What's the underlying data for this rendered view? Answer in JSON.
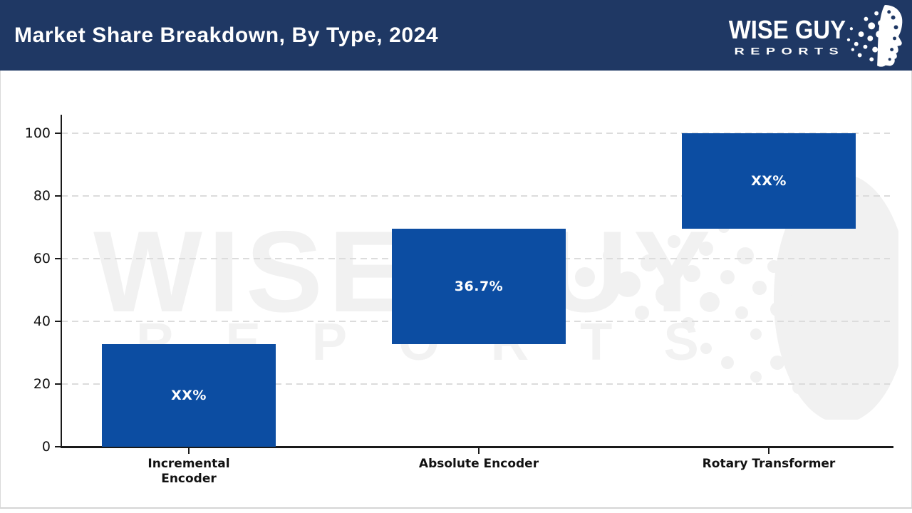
{
  "header": {
    "title": "Market Share Breakdown, By Type, 2024",
    "logo": {
      "brand_line1": "WISE GUY",
      "brand_line2": "REPORTS"
    }
  },
  "watermark": {
    "line1": "WISE GUY",
    "line2": "REPORTS"
  },
  "chart_data": {
    "type": "bar",
    "variant": "floating-waterfall-segments",
    "title": "Market Share Breakdown, By Type, 2024",
    "categories": [
      "Incremental Encoder",
      "Absolute Encoder",
      "Rotary Transformer"
    ],
    "category_label_lines": [
      [
        "Incremental",
        "Encoder"
      ],
      [
        "Absolute Encoder"
      ],
      [
        "Rotary Transformer"
      ]
    ],
    "segments": [
      {
        "category": "Incremental Encoder",
        "start": 0,
        "end": 32.8,
        "label": "XX%"
      },
      {
        "category": "Absolute Encoder",
        "start": 32.8,
        "end": 69.5,
        "label": "36.7%"
      },
      {
        "category": "Rotary Transformer",
        "start": 69.5,
        "end": 100,
        "label": "XX%"
      }
    ],
    "xlabel": "",
    "ylabel": "",
    "ylim": [
      0,
      100
    ],
    "yticks": [
      0,
      20,
      40,
      60,
      80,
      100
    ],
    "grid": "horizontal-dashed",
    "legend": "none",
    "bar_color": "#0C4DA2",
    "bar_label_color": "#FFFFFF"
  },
  "colors": {
    "header_bg": "#1F3864",
    "header_text": "#FFFFFF",
    "bar": "#0C4DA2",
    "axis": "#1A1A1A",
    "gridline": "#DCDCDC",
    "watermark": "#F1F1F1",
    "frame_border": "#D9D9D9",
    "page_bg": "#FFFFFF"
  }
}
